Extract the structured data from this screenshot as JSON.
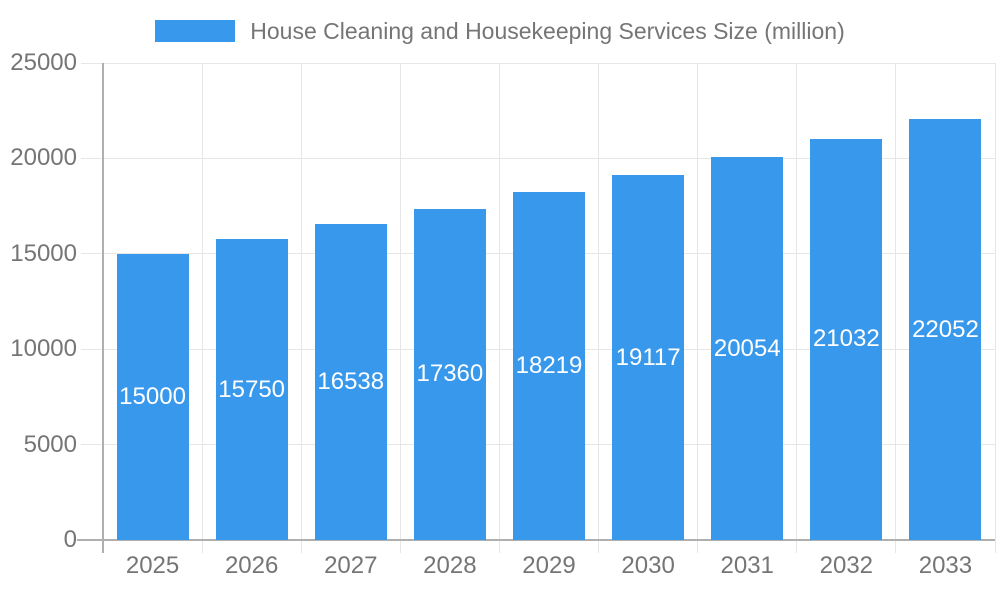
{
  "colors": {
    "bar": "#3899EC",
    "grid": "#E6E6E6",
    "axis": "#AFAFAF",
    "text": "#757575",
    "bar_label": "#FFFFFF",
    "background": "#FFFFFF"
  },
  "legend": {
    "swatch_icon": "series-color-swatch",
    "label": "House Cleaning and Housekeeping Services Size (million)"
  },
  "chart_data": {
    "type": "bar",
    "title": "House Cleaning and Housekeeping Services Size (million)",
    "categories": [
      "2025",
      "2026",
      "2027",
      "2028",
      "2029",
      "2030",
      "2031",
      "2032",
      "2033"
    ],
    "values": [
      15000,
      15750,
      16538,
      17360,
      18219,
      19117,
      20054,
      21032,
      22052
    ],
    "xlabel": "",
    "ylabel": "",
    "ylim": [
      0,
      25000
    ],
    "yticks": [
      0,
      5000,
      10000,
      15000,
      20000,
      25000
    ],
    "ytick_labels": [
      "0",
      "5000",
      "10000",
      "15000",
      "20000",
      "25000"
    ],
    "grid": true,
    "legend_position": "top",
    "value_labels": "inside-center-white"
  }
}
